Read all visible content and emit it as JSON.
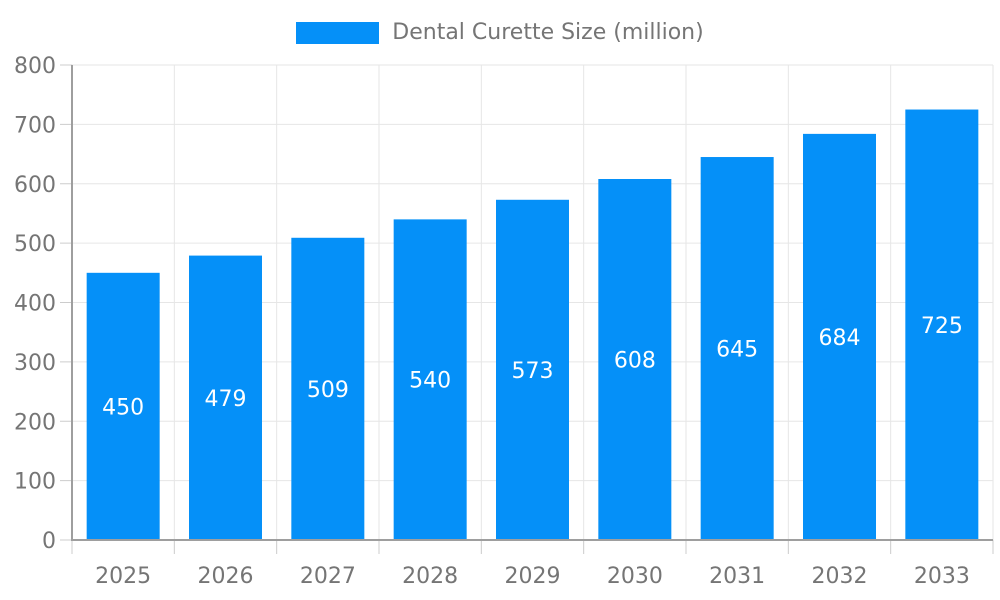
{
  "chart_data": {
    "type": "bar",
    "title": "Dental Curette Size (million)",
    "categories": [
      "2025",
      "2026",
      "2027",
      "2028",
      "2029",
      "2030",
      "2031",
      "2032",
      "2033"
    ],
    "values": [
      450,
      479,
      509,
      540,
      573,
      608,
      645,
      684,
      725
    ],
    "xlabel": "",
    "ylabel": "",
    "ylim": [
      0,
      800
    ],
    "ytick_step": 100,
    "yticks": [
      "0",
      "100",
      "200",
      "300",
      "400",
      "500",
      "600",
      "700",
      "800"
    ],
    "grid": true,
    "legend_position": "top-center",
    "legend_entries": [
      {
        "label": "Dental Curette Size (million)",
        "color": "#0590f8"
      }
    ],
    "colors": {
      "bar": "#0590f8",
      "value_label": "#ffffff",
      "axis_text": "#757575",
      "axis_line": "#9e9e9e",
      "gridline": "#e6e6e6",
      "tick": "#cccccc"
    }
  }
}
